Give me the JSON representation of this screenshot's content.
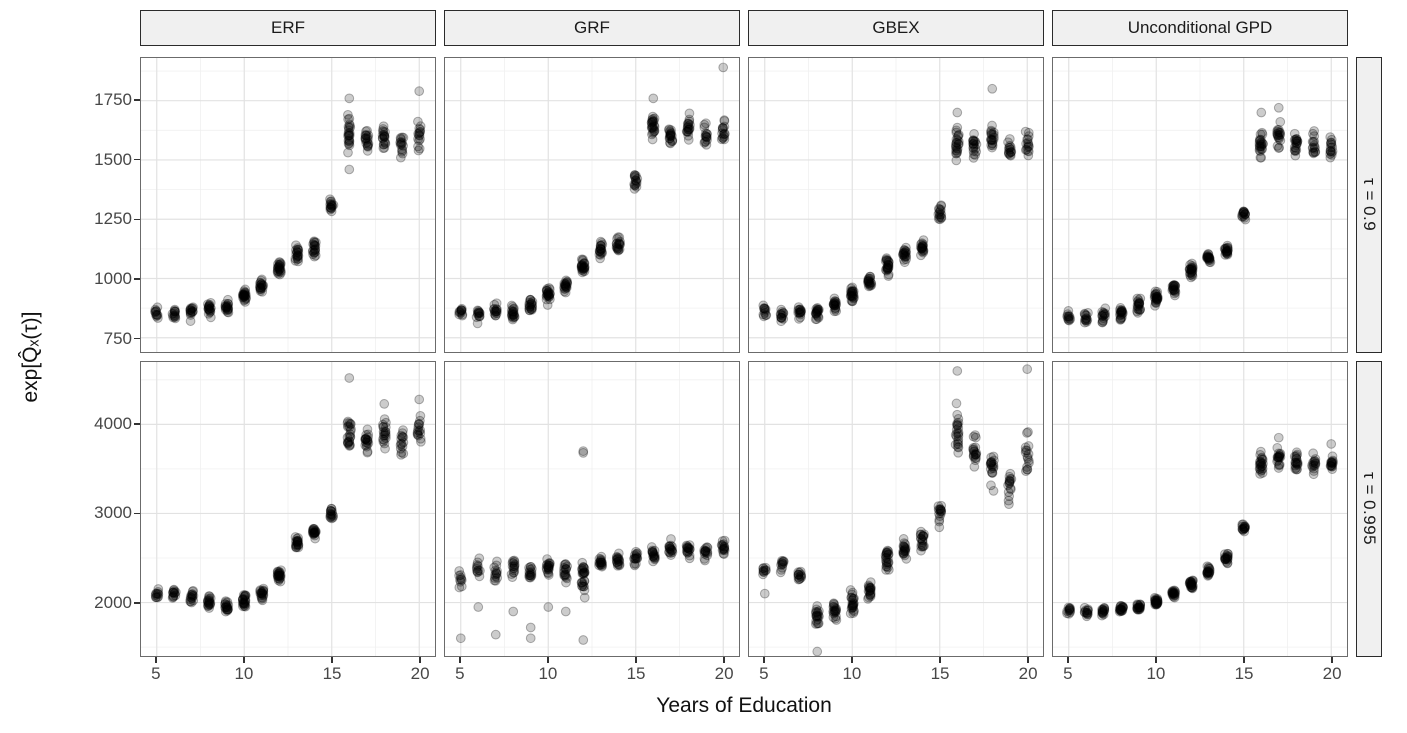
{
  "chart_data": {
    "type": "scatter",
    "title": "",
    "xlabel": "Years of Education",
    "ylabel": "exp[Q̂ₓ(τ)]",
    "legend": "none",
    "grid": "on",
    "facet_cols": [
      "ERF",
      "GRF",
      "GBEX",
      "Unconditional GPD"
    ],
    "facet_rows": [
      {
        "label": "τ = 0.9",
        "ylim": [
          690,
          1930
        ],
        "y_ticks": [
          750,
          1000,
          1250,
          1500,
          1750
        ],
        "y_minor": [
          875,
          1125,
          1375,
          1625,
          1875
        ]
      },
      {
        "label": "τ = 0.995",
        "ylim": [
          1400,
          4700
        ],
        "y_ticks": [
          2000,
          3000,
          4000
        ],
        "y_minor": [
          1500,
          2500,
          3500,
          4500
        ]
      }
    ],
    "x": {
      "lim": [
        4.1,
        20.9
      ],
      "ticks": [
        5,
        10,
        15,
        20
      ],
      "minor": [
        7.5,
        12.5,
        17.5
      ]
    },
    "point_style": {
      "radius": 4.4,
      "color": "#000000",
      "fill_opacity": 0.2,
      "stroke_opacity": 0.3
    },
    "panels": [
      {
        "row": 0,
        "col": 0,
        "name": "ERF tau=0.9",
        "clusters": [
          [
            5,
            855,
            35,
            12
          ],
          [
            6,
            845,
            30,
            14
          ],
          [
            7,
            855,
            40,
            16
          ],
          [
            8,
            865,
            45,
            20
          ],
          [
            9,
            885,
            45,
            20
          ],
          [
            10,
            925,
            45,
            24
          ],
          [
            11,
            965,
            40,
            20
          ],
          [
            12,
            1040,
            50,
            24
          ],
          [
            13,
            1105,
            45,
            20
          ],
          [
            14,
            1130,
            45,
            20
          ],
          [
            15,
            1300,
            50,
            16
          ],
          [
            16,
            1600,
            110,
            24
          ],
          [
            17,
            1580,
            70,
            20
          ],
          [
            18,
            1590,
            80,
            20
          ],
          [
            19,
            1565,
            70,
            16
          ],
          [
            20,
            1610,
            90,
            16
          ]
        ],
        "outliers": [
          [
            20,
            1790
          ],
          [
            16,
            1760
          ],
          [
            16,
            1460
          ]
        ]
      },
      {
        "row": 0,
        "col": 1,
        "name": "GRF tau=0.9",
        "clusters": [
          [
            5,
            855,
            40,
            12
          ],
          [
            6,
            845,
            45,
            14
          ],
          [
            7,
            865,
            50,
            16
          ],
          [
            8,
            855,
            50,
            20
          ],
          [
            9,
            885,
            50,
            20
          ],
          [
            10,
            930,
            50,
            24
          ],
          [
            11,
            975,
            45,
            20
          ],
          [
            12,
            1045,
            55,
            24
          ],
          [
            13,
            1120,
            50,
            20
          ],
          [
            14,
            1140,
            55,
            20
          ],
          [
            15,
            1410,
            50,
            16
          ],
          [
            16,
            1645,
            75,
            24
          ],
          [
            17,
            1600,
            65,
            20
          ],
          [
            18,
            1645,
            65,
            20
          ],
          [
            19,
            1615,
            75,
            16
          ],
          [
            20,
            1625,
            75,
            16
          ]
        ],
        "outliers": [
          [
            20,
            1890
          ],
          [
            16,
            1760
          ]
        ]
      },
      {
        "row": 0,
        "col": 2,
        "name": "GBEX tau=0.9",
        "clusters": [
          [
            5,
            870,
            50,
            12
          ],
          [
            6,
            845,
            40,
            14
          ],
          [
            7,
            860,
            45,
            16
          ],
          [
            8,
            855,
            45,
            20
          ],
          [
            9,
            885,
            45,
            20
          ],
          [
            10,
            935,
            50,
            24
          ],
          [
            11,
            985,
            45,
            20
          ],
          [
            12,
            1050,
            55,
            24
          ],
          [
            13,
            1110,
            50,
            20
          ],
          [
            14,
            1130,
            50,
            20
          ],
          [
            15,
            1280,
            60,
            16
          ],
          [
            16,
            1570,
            90,
            24
          ],
          [
            17,
            1560,
            75,
            20
          ],
          [
            18,
            1580,
            85,
            20
          ],
          [
            19,
            1545,
            65,
            16
          ],
          [
            20,
            1560,
            75,
            16
          ]
        ],
        "outliers": [
          [
            18,
            1800
          ],
          [
            16,
            1700
          ]
        ]
      },
      {
        "row": 0,
        "col": 3,
        "name": "Unconditional GPD tau=0.9",
        "clusters": [
          [
            5,
            840,
            45,
            12
          ],
          [
            6,
            830,
            40,
            14
          ],
          [
            7,
            840,
            45,
            16
          ],
          [
            8,
            855,
            45,
            20
          ],
          [
            9,
            880,
            45,
            20
          ],
          [
            10,
            915,
            45,
            24
          ],
          [
            11,
            960,
            45,
            20
          ],
          [
            12,
            1030,
            50,
            24
          ],
          [
            13,
            1090,
            45,
            20
          ],
          [
            14,
            1120,
            40,
            20
          ],
          [
            15,
            1272,
            28,
            16
          ],
          [
            16,
            1570,
            90,
            24
          ],
          [
            17,
            1595,
            75,
            20
          ],
          [
            18,
            1570,
            75,
            20
          ],
          [
            19,
            1560,
            75,
            16
          ],
          [
            20,
            1550,
            65,
            16
          ]
        ],
        "outliers": [
          [
            17,
            1720
          ],
          [
            16,
            1700
          ]
        ]
      },
      {
        "row": 1,
        "col": 0,
        "name": "ERF tau=0.995",
        "clusters": [
          [
            5,
            2100,
            90,
            12
          ],
          [
            6,
            2090,
            100,
            14
          ],
          [
            7,
            2060,
            130,
            16
          ],
          [
            8,
            1990,
            100,
            20
          ],
          [
            9,
            1960,
            90,
            20
          ],
          [
            10,
            2010,
            100,
            24
          ],
          [
            11,
            2090,
            100,
            20
          ],
          [
            12,
            2300,
            110,
            24
          ],
          [
            13,
            2680,
            110,
            20
          ],
          [
            14,
            2790,
            100,
            20
          ],
          [
            15,
            3010,
            110,
            16
          ],
          [
            16,
            3880,
            260,
            24
          ],
          [
            17,
            3800,
            180,
            20
          ],
          [
            18,
            3890,
            190,
            20
          ],
          [
            19,
            3810,
            200,
            16
          ],
          [
            20,
            3960,
            230,
            16
          ]
        ],
        "outliers": [
          [
            16,
            4520
          ],
          [
            20,
            4280
          ],
          [
            18,
            4230
          ]
        ]
      },
      {
        "row": 1,
        "col": 1,
        "name": "GRF tau=0.995",
        "clusters": [
          [
            5,
            2280,
            170,
            10
          ],
          [
            6,
            2380,
            130,
            12
          ],
          [
            7,
            2350,
            160,
            14
          ],
          [
            8,
            2380,
            130,
            16
          ],
          [
            9,
            2330,
            180,
            16
          ],
          [
            10,
            2390,
            120,
            20
          ],
          [
            11,
            2350,
            160,
            18
          ],
          [
            12,
            2280,
            300,
            28
          ],
          [
            13,
            2450,
            100,
            18
          ],
          [
            14,
            2470,
            110,
            18
          ],
          [
            15,
            2500,
            120,
            16
          ],
          [
            16,
            2550,
            130,
            18
          ],
          [
            17,
            2600,
            120,
            18
          ],
          [
            18,
            2600,
            130,
            18
          ],
          [
            19,
            2550,
            140,
            16
          ],
          [
            20,
            2630,
            120,
            16
          ]
        ],
        "outliers": [
          [
            12,
            3700
          ],
          [
            12,
            3680
          ],
          [
            5,
            1600
          ],
          [
            7,
            1640
          ],
          [
            9,
            1600
          ],
          [
            9,
            1720
          ],
          [
            12,
            1580
          ],
          [
            8,
            1900
          ],
          [
            11,
            1900
          ],
          [
            6,
            1950
          ],
          [
            10,
            1950
          ]
        ]
      },
      {
        "row": 1,
        "col": 2,
        "name": "GBEX tau=0.995",
        "clusters": [
          [
            5,
            2350,
            110,
            10
          ],
          [
            6,
            2420,
            130,
            12
          ],
          [
            7,
            2310,
            130,
            14
          ],
          [
            8,
            1830,
            200,
            20
          ],
          [
            9,
            1900,
            160,
            20
          ],
          [
            10,
            2000,
            160,
            24
          ],
          [
            11,
            2110,
            160,
            20
          ],
          [
            12,
            2480,
            210,
            24
          ],
          [
            13,
            2600,
            160,
            20
          ],
          [
            14,
            2700,
            160,
            20
          ],
          [
            15,
            3000,
            210,
            16
          ],
          [
            16,
            3900,
            380,
            24
          ],
          [
            17,
            3700,
            260,
            20
          ],
          [
            18,
            3500,
            290,
            20
          ],
          [
            19,
            3300,
            260,
            16
          ],
          [
            20,
            3700,
            420,
            16
          ]
        ],
        "outliers": [
          [
            16,
            4600
          ],
          [
            20,
            4620
          ],
          [
            8,
            1450
          ],
          [
            5,
            2100
          ]
        ]
      },
      {
        "row": 1,
        "col": 3,
        "name": "Unconditional GPD tau=0.995",
        "clusters": [
          [
            5,
            1900,
            70,
            12
          ],
          [
            6,
            1890,
            70,
            14
          ],
          [
            7,
            1900,
            70,
            16
          ],
          [
            8,
            1940,
            70,
            20
          ],
          [
            9,
            1950,
            70,
            20
          ],
          [
            10,
            2010,
            70,
            24
          ],
          [
            11,
            2100,
            70,
            20
          ],
          [
            12,
            2200,
            80,
            24
          ],
          [
            13,
            2350,
            80,
            20
          ],
          [
            14,
            2500,
            80,
            20
          ],
          [
            15,
            2840,
            80,
            16
          ],
          [
            16,
            3550,
            170,
            24
          ],
          [
            17,
            3620,
            160,
            20
          ],
          [
            18,
            3570,
            150,
            20
          ],
          [
            19,
            3560,
            140,
            16
          ],
          [
            20,
            3560,
            140,
            16
          ]
        ],
        "outliers": [
          [
            20,
            3780
          ],
          [
            17,
            3850
          ]
        ]
      }
    ],
    "colors": {
      "gridline_major": "#e2e2e2",
      "gridline_minor": "#f0f0f0",
      "panel_border": "#6b6b6b",
      "strip_fill": "#f0f0f0",
      "strip_border": "#2b2b2b",
      "tick_label": "#474747",
      "point": "#000000"
    }
  }
}
